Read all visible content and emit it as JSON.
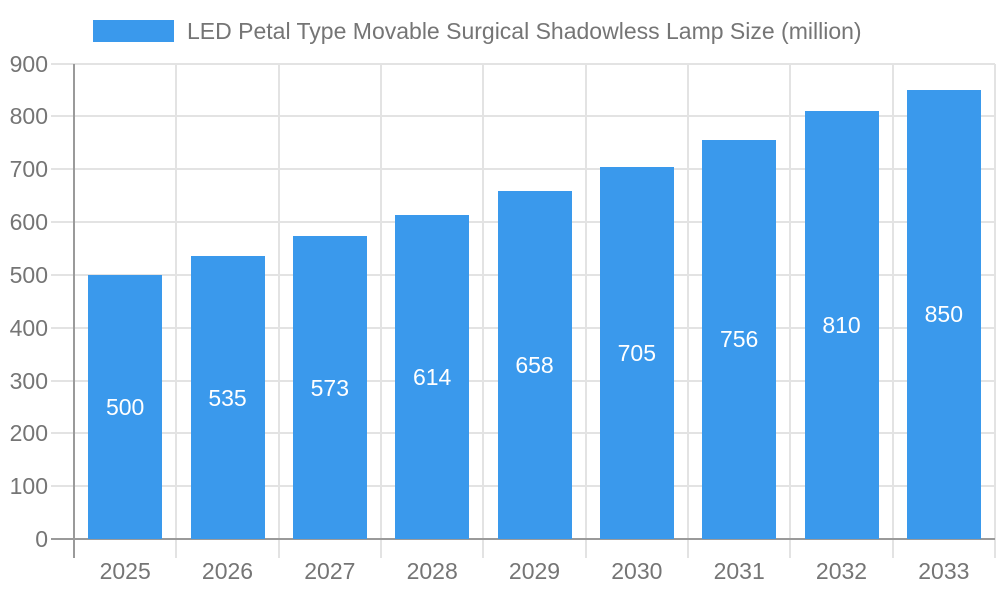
{
  "chart_data": {
    "type": "bar",
    "legend_label": "LED Petal Type Movable Surgical Shadowless Lamp Size (million)",
    "categories": [
      "2025",
      "2026",
      "2027",
      "2028",
      "2029",
      "2030",
      "2031",
      "2032",
      "2033"
    ],
    "values": [
      500,
      535,
      573,
      614,
      658,
      705,
      756,
      810,
      850
    ],
    "y_ticks": [
      0,
      100,
      200,
      300,
      400,
      500,
      600,
      700,
      800,
      900
    ],
    "ylim": [
      0,
      900
    ],
    "grid": "on",
    "legend_position": "top-left",
    "colors": {
      "bar": "#3a99ec",
      "grid": "#e3e3e3",
      "axis": "#9a9a9a",
      "tick_text": "#757575",
      "value_text": "#ffffff",
      "background": "#ffffff"
    }
  }
}
